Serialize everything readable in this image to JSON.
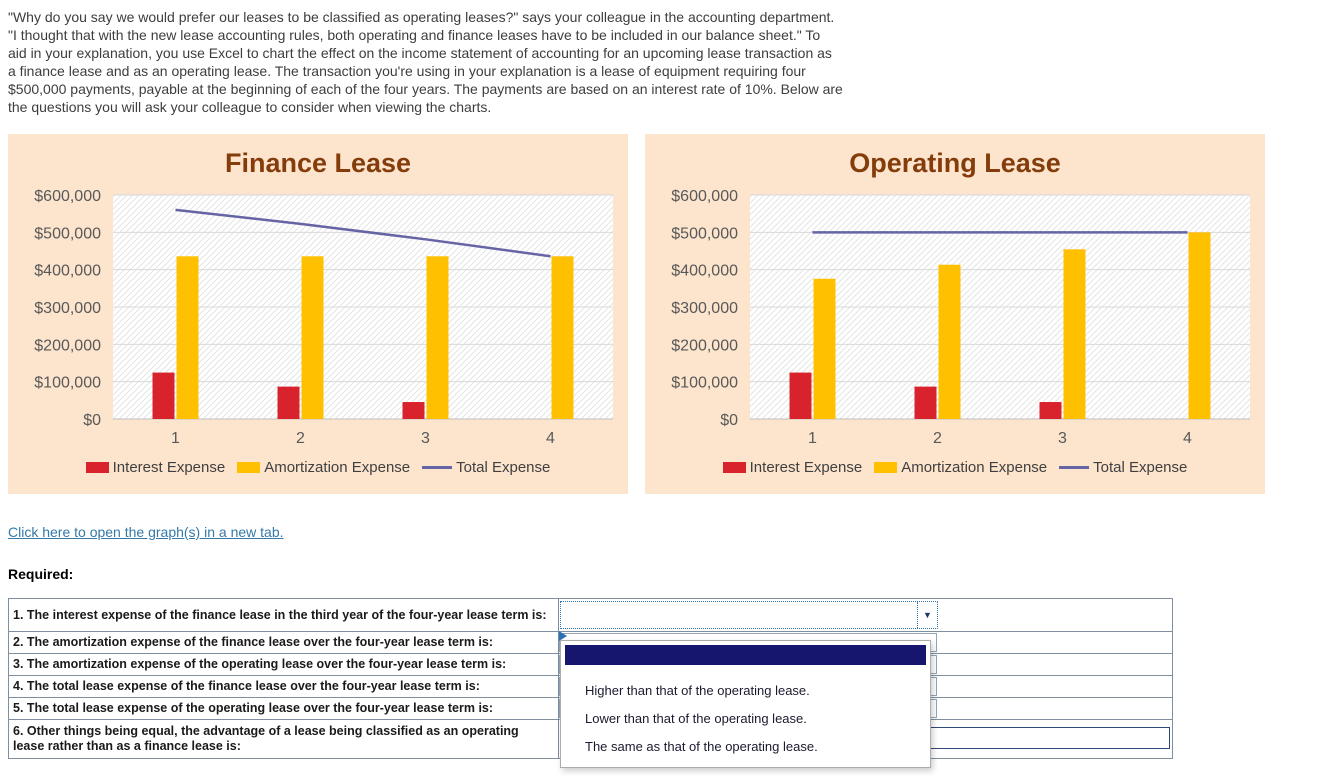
{
  "intro": {
    "lines": [
      "\"Why do you say we would prefer our leases to be classified as operating leases?\" says your colleague in the accounting department.",
      "\"I thought that with the new lease accounting rules, both operating and finance leases have to be included in our balance sheet.\" To",
      "aid in your explanation, you use Excel to chart the effect on the income statement of accounting for an upcoming lease transaction as",
      "a finance lease and as an operating lease. The transaction you're using in your explanation is a lease of equipment requiring four",
      "$500,000 payments, payable at the beginning of each of the four years. The payments are based on an interest rate of 10%. Below are",
      "the questions you will ask your colleague to consider when viewing the charts."
    ]
  },
  "graph_link": "Click here to open the graph(s) in a new tab.",
  "required_label": "Required:",
  "questions": [
    "1. The interest expense of the finance lease in the third year of the four-year lease term is:",
    "2. The amortization expense of the finance lease over the four-year lease term is:",
    "3. The amortization expense of the operating lease over the four-year lease term is:",
    "4. The total lease expense of the finance lease over the four-year lease term is:",
    "5. The total lease expense of the operating lease over the four-year lease term is:",
    "6. Other things being equal, the advantage of a lease being classified as an operating lease rather than as a finance lease is:"
  ],
  "dropdown": {
    "value": "",
    "options": [
      "Higher than that of the operating lease.",
      "Lower than that of the operating lease.",
      "The same as that of the operating lease."
    ]
  },
  "icons": {
    "dropdown_caret": "▼"
  },
  "colors": {
    "panel_bg": "#fce4cd",
    "title_brown": "#843c0b",
    "bar_red": "#d9232c",
    "bar_gold": "#ffc000",
    "line_purple": "#6565a5",
    "link_blue": "#3579a8",
    "highlight_navy": "#16166e",
    "answer_border_navy": "#30497b"
  },
  "chart_data": [
    {
      "type": "bar",
      "title": "Finance Lease",
      "categories": [
        "1",
        "2",
        "3",
        "4"
      ],
      "series": [
        {
          "name": "Interest Expense",
          "type": "bar",
          "color": "#d9232c",
          "values": [
            124343,
            86777,
            45455,
            0
          ]
        },
        {
          "name": "Amortization Expense",
          "type": "bar",
          "color": "#ffc000",
          "values": [
            435856,
            435856,
            435856,
            435856
          ]
        },
        {
          "name": "Total Expense",
          "type": "line",
          "color": "#6565a5",
          "values": [
            560199,
            522633,
            481311,
            435856
          ]
        }
      ],
      "ylim": [
        0,
        600000
      ],
      "ytick_step": 100000,
      "grid": true,
      "legend_position": "bottom"
    },
    {
      "type": "bar",
      "title": "Operating Lease",
      "categories": [
        "1",
        "2",
        "3",
        "4"
      ],
      "series": [
        {
          "name": "Interest Expense",
          "type": "bar",
          "color": "#d9232c",
          "values": [
            124343,
            86777,
            45455,
            0
          ]
        },
        {
          "name": "Amortization Expense",
          "type": "bar",
          "color": "#ffc000",
          "values": [
            375657,
            413223,
            454545,
            500000
          ]
        },
        {
          "name": "Total Expense",
          "type": "line",
          "color": "#6565a5",
          "values": [
            500000,
            500000,
            500000,
            500000
          ]
        }
      ],
      "ylim": [
        0,
        600000
      ],
      "ytick_step": 100000,
      "grid": true,
      "legend_position": "bottom"
    }
  ]
}
